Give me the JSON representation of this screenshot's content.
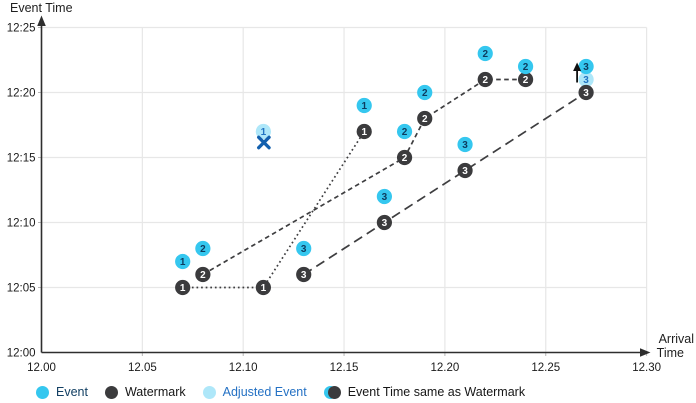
{
  "chart_data": {
    "type": "scatter",
    "y_axis_title": "Event Time",
    "x_axis_title_line1": "Arrival",
    "x_axis_title_line2": "Time",
    "x_ticks": [
      "12.00",
      "12.05",
      "12.10",
      "12.15",
      "12.20",
      "12.25",
      "12.30"
    ],
    "y_ticks": [
      "12:00",
      "12:05",
      "12:10",
      "12:15",
      "12:20",
      "12:25"
    ],
    "x_range_minutes_after_1200": [
      0,
      30
    ],
    "y_range_minutes_after_1200": [
      0,
      25
    ],
    "grid": true,
    "grid_color": "#E7E7E7",
    "axis_color": "#2E2E2E",
    "watermark_line_color": "#3E3E40",
    "series": [
      {
        "name": "Event",
        "type": "event",
        "marker_color": "#35C7EF",
        "number_color": "#0D3B5E",
        "points": [
          {
            "label": "1",
            "arrival": "12.07",
            "event_time": "12:07"
          },
          {
            "label": "2",
            "arrival": "12.08",
            "event_time": "12:08"
          },
          {
            "label": "3",
            "arrival": "12.13",
            "event_time": "12:08"
          },
          {
            "label": "3",
            "arrival": "12.17",
            "event_time": "12:12"
          },
          {
            "label": "1",
            "arrival": "12.16",
            "event_time": "12:19"
          },
          {
            "label": "2",
            "arrival": "12.18",
            "event_time": "12:17"
          },
          {
            "label": "2",
            "arrival": "12.19",
            "event_time": "12:20"
          },
          {
            "label": "3",
            "arrival": "12.21",
            "event_time": "12:16"
          },
          {
            "label": "2",
            "arrival": "12.22",
            "event_time": "12:23"
          },
          {
            "label": "2",
            "arrival": "12.24",
            "event_time": "12:22"
          },
          {
            "label": "3",
            "arrival": "12.27",
            "event_time": "12:22"
          }
        ]
      },
      {
        "name": "Watermark",
        "type": "watermark",
        "marker_color": "#3B3B3D",
        "number_color": "#FFFFFF",
        "points": [
          {
            "label": "1",
            "arrival": "12.07",
            "event_time": "12:05"
          },
          {
            "label": "2",
            "arrival": "12.08",
            "event_time": "12:06"
          },
          {
            "label": "1",
            "arrival": "12.11",
            "event_time": "12:05"
          },
          {
            "label": "3",
            "arrival": "12.13",
            "event_time": "12:06"
          },
          {
            "label": "1",
            "arrival": "12.16",
            "event_time": "12:17"
          },
          {
            "label": "3",
            "arrival": "12.17",
            "event_time": "12:10"
          },
          {
            "label": "2",
            "arrival": "12.18",
            "event_time": "12:15"
          },
          {
            "label": "2",
            "arrival": "12.19",
            "event_time": "12:18"
          },
          {
            "label": "3",
            "arrival": "12.21",
            "event_time": "12:14"
          },
          {
            "label": "2",
            "arrival": "12.22",
            "event_time": "12:21"
          },
          {
            "label": "2",
            "arrival": "12.24",
            "event_time": "12:21"
          },
          {
            "label": "3",
            "arrival": "12.27",
            "event_time": "12:20"
          }
        ],
        "lines": [
          {
            "id": "watermark-1",
            "dash": "dotted",
            "points": [
              {
                "arrival": "12.07",
                "event_time": "12:05"
              },
              {
                "arrival": "12.11",
                "event_time": "12:05"
              },
              {
                "arrival": "12.16",
                "event_time": "12:17"
              }
            ]
          },
          {
            "id": "watermark-2",
            "dash": "dashed",
            "points": [
              {
                "arrival": "12.08",
                "event_time": "12:06"
              },
              {
                "arrival": "12.18",
                "event_time": "12:15"
              },
              {
                "arrival": "12.19",
                "event_time": "12:18"
              },
              {
                "arrival": "12.22",
                "event_time": "12:21"
              },
              {
                "arrival": "12.24",
                "event_time": "12:21"
              }
            ]
          },
          {
            "id": "watermark-3",
            "dash": "long-dash",
            "points": [
              {
                "arrival": "12.13",
                "event_time": "12:06"
              },
              {
                "arrival": "12.17",
                "event_time": "12:10"
              },
              {
                "arrival": "12.21",
                "event_time": "12:14"
              },
              {
                "arrival": "12.27",
                "event_time": "12:20"
              }
            ]
          }
        ]
      },
      {
        "name": "Adjusted Event",
        "type": "adjusted",
        "marker_color": "#AEE7F9",
        "number_color": "#2173C2",
        "points": [
          {
            "label": "1",
            "arrival": "12.11",
            "event_time": "12:17",
            "overlay": "x-mark"
          },
          {
            "label": "3",
            "arrival": "12.27",
            "event_time": "12:21",
            "overlay": "up-arrow"
          }
        ]
      }
    ],
    "annotation_colors": {
      "x_mark": "#1360AE",
      "up_arrow": "#111111"
    }
  },
  "legend": {
    "items": [
      {
        "label": "Event",
        "swatch": "event",
        "swatch_color": "#35C7EF",
        "label_color": "#123F63"
      },
      {
        "label": "Watermark",
        "swatch": "watermark",
        "swatch_color": "#3B3B3D",
        "label_color": "#161616"
      },
      {
        "label": "Adjusted Event",
        "swatch": "adjusted",
        "swatch_color": "#AEE7F9",
        "label_color": "#2471C4"
      },
      {
        "label": "Event Time same as Watermark",
        "swatch": "combo",
        "swatch_colors": [
          "#35C7EF",
          "#3B3B3D"
        ],
        "label_color": "#161616"
      }
    ]
  }
}
